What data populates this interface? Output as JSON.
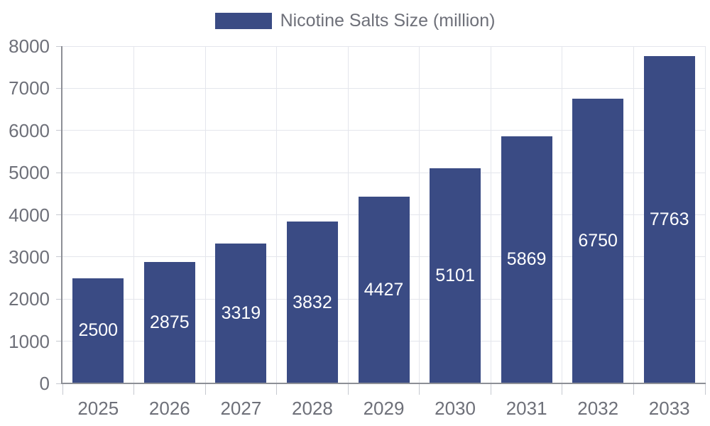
{
  "chart_data": {
    "type": "bar",
    "title": "Nicotine Salts Size (million)",
    "legend": [
      "Nicotine Salts Size (million)"
    ],
    "legend_position": "top-center",
    "categories": [
      "2025",
      "2026",
      "2027",
      "2028",
      "2029",
      "2030",
      "2031",
      "2032",
      "2033"
    ],
    "values": [
      2500,
      2875,
      3319,
      3832,
      4427,
      5101,
      5869,
      6750,
      7763
    ],
    "xlabel": "",
    "ylabel": "",
    "ylim": [
      0,
      8000
    ],
    "ytick_interval": 1000,
    "yticks": [
      0,
      1000,
      2000,
      3000,
      4000,
      5000,
      6000,
      7000,
      8000
    ],
    "grid": true,
    "value_labels": "inside-middle",
    "colors": {
      "bar": "#3A4B84",
      "bar_label": "#FFFFFF",
      "axis_text": "#6E7079",
      "axis_line": "#8D8F96",
      "tick": "#C6C9D0",
      "gridline": "#E4E6EC",
      "background": "#FFFFFF"
    }
  }
}
